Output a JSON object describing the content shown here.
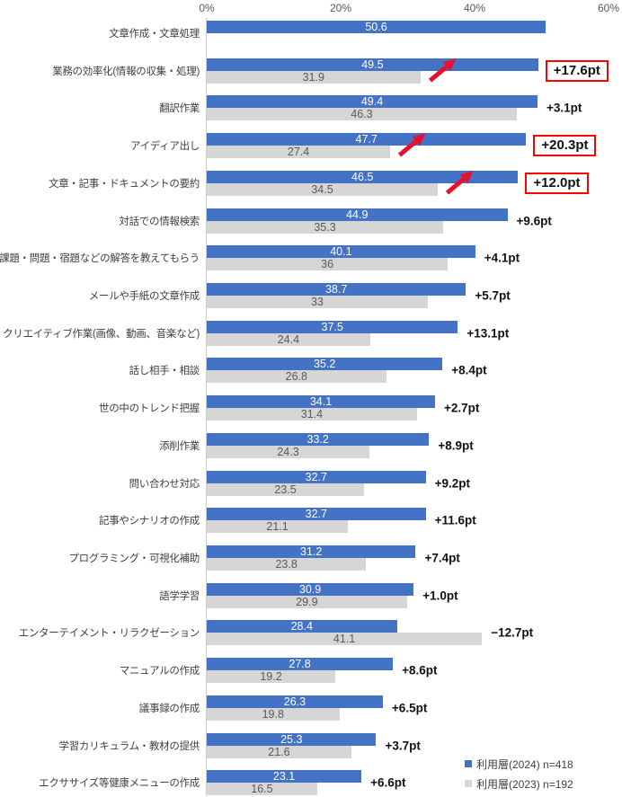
{
  "chart_data": {
    "type": "bar",
    "orientation": "horizontal",
    "grid": false,
    "legend_position": "bottom-right",
    "x_axis": {
      "ticks": [
        "0%",
        "20%",
        "40%",
        "60%"
      ],
      "tick_values": [
        0,
        20,
        40,
        60
      ],
      "range": [
        0,
        60
      ],
      "unit": "%"
    },
    "series_names": [
      "利用層(2024)",
      "利用層(2023)"
    ],
    "legend": [
      {
        "label": "利用層(2024) n=418",
        "color": "#4472C4"
      },
      {
        "label": "利用層(2023) n=192",
        "color": "#D6D6D6"
      }
    ],
    "rows": [
      {
        "category": "文章作成・文章処理",
        "v2024": 50.6,
        "v2024_label": "50.6",
        "v2023": null,
        "v2023_label": null,
        "diff": null,
        "highlight": false,
        "arrow": false
      },
      {
        "category": "業務の効率化(情報の収集・処理)",
        "v2024": 49.5,
        "v2024_label": "49.5",
        "v2023": 31.9,
        "v2023_label": "31.9",
        "diff": "+17.6pt",
        "highlight": true,
        "arrow": true
      },
      {
        "category": "翻訳作業",
        "v2024": 49.4,
        "v2024_label": "49.4",
        "v2023": 46.3,
        "v2023_label": "46.3",
        "diff": "+3.1pt",
        "highlight": false,
        "arrow": false
      },
      {
        "category": "アイディア出し",
        "v2024": 47.7,
        "v2024_label": "47.7",
        "v2023": 27.4,
        "v2023_label": "27.4",
        "diff": "+20.3pt",
        "highlight": true,
        "arrow": true
      },
      {
        "category": "文章・記事・ドキュメントの要約",
        "v2024": 46.5,
        "v2024_label": "46.5",
        "v2023": 34.5,
        "v2023_label": "34.5",
        "diff": "+12.0pt",
        "highlight": true,
        "arrow": true
      },
      {
        "category": "対話での情報検索",
        "v2024": 44.9,
        "v2024_label": "44.9",
        "v2023": 35.3,
        "v2023_label": "35.3",
        "diff": "+9.6pt",
        "highlight": false,
        "arrow": false
      },
      {
        "category": "課題・問題・宿題などの解答を教えてもらう",
        "v2024": 40.1,
        "v2024_label": "40.1",
        "v2023": 36,
        "v2023_label": "36",
        "diff": "+4.1pt",
        "highlight": false,
        "arrow": false
      },
      {
        "category": "メールや手紙の文章作成",
        "v2024": 38.7,
        "v2024_label": "38.7",
        "v2023": 33,
        "v2023_label": "33",
        "diff": "+5.7pt",
        "highlight": false,
        "arrow": false
      },
      {
        "category": "クリエイティブ作業(画像、動画、音楽など)",
        "v2024": 37.5,
        "v2024_label": "37.5",
        "v2023": 24.4,
        "v2023_label": "24.4",
        "diff": "+13.1pt",
        "highlight": false,
        "arrow": false
      },
      {
        "category": "話し相手・相談",
        "v2024": 35.2,
        "v2024_label": "35.2",
        "v2023": 26.8,
        "v2023_label": "26.8",
        "diff": "+8.4pt",
        "highlight": false,
        "arrow": false
      },
      {
        "category": "世の中のトレンド把握",
        "v2024": 34.1,
        "v2024_label": "34.1",
        "v2023": 31.4,
        "v2023_label": "31.4",
        "diff": "+2.7pt",
        "highlight": false,
        "arrow": false
      },
      {
        "category": "添削作業",
        "v2024": 33.2,
        "v2024_label": "33.2",
        "v2023": 24.3,
        "v2023_label": "24.3",
        "diff": "+8.9pt",
        "highlight": false,
        "arrow": false
      },
      {
        "category": "問い合わせ対応",
        "v2024": 32.7,
        "v2024_label": "32.7",
        "v2023": 23.5,
        "v2023_label": "23.5",
        "diff": "+9.2pt",
        "highlight": false,
        "arrow": false
      },
      {
        "category": "記事やシナリオの作成",
        "v2024": 32.7,
        "v2024_label": "32.7",
        "v2023": 21.1,
        "v2023_label": "21.1",
        "diff": "+11.6pt",
        "highlight": false,
        "arrow": false
      },
      {
        "category": "プログラミング・可視化補助",
        "v2024": 31.2,
        "v2024_label": "31.2",
        "v2023": 23.8,
        "v2023_label": "23.8",
        "diff": "+7.4pt",
        "highlight": false,
        "arrow": false
      },
      {
        "category": "語学学習",
        "v2024": 30.9,
        "v2024_label": "30.9",
        "v2023": 29.9,
        "v2023_label": "29.9",
        "diff": "+1.0pt",
        "highlight": false,
        "arrow": false
      },
      {
        "category": "エンターテイメント・リラクゼーション",
        "v2024": 28.4,
        "v2024_label": "28.4",
        "v2023": 41.1,
        "v2023_label": "41.1",
        "diff": "−12.7pt",
        "highlight": false,
        "arrow": false
      },
      {
        "category": "マニュアルの作成",
        "v2024": 27.8,
        "v2024_label": "27.8",
        "v2023": 19.2,
        "v2023_label": "19.2",
        "diff": "+8.6pt",
        "highlight": false,
        "arrow": false
      },
      {
        "category": "議事録の作成",
        "v2024": 26.3,
        "v2024_label": "26.3",
        "v2023": 19.8,
        "v2023_label": "19.8",
        "diff": "+6.5pt",
        "highlight": false,
        "arrow": false
      },
      {
        "category": "学習カリキュラム・教材の提供",
        "v2024": 25.3,
        "v2024_label": "25.3",
        "v2023": 21.6,
        "v2023_label": "21.6",
        "diff": "+3.7pt",
        "highlight": false,
        "arrow": false
      },
      {
        "category": "エクササイズ等健康メニューの作成",
        "v2024": 23.1,
        "v2024_label": "23.1",
        "v2023": 16.5,
        "v2023_label": "16.5",
        "diff": "+6.6pt",
        "highlight": false,
        "arrow": false
      }
    ],
    "colors": {
      "bar_2024": "#4472C4",
      "bar_2023": "#D6D6D6",
      "bar_2024_value_text": "#FFFFFF",
      "bar_2023_value_text": "#595959",
      "diff_text": "#111111",
      "highlight_box_border": "#FF0000",
      "arrow": "#E8112D",
      "axis_line": "#CFCFCF",
      "tick_text": "#595959",
      "category_text": "#404040"
    }
  }
}
